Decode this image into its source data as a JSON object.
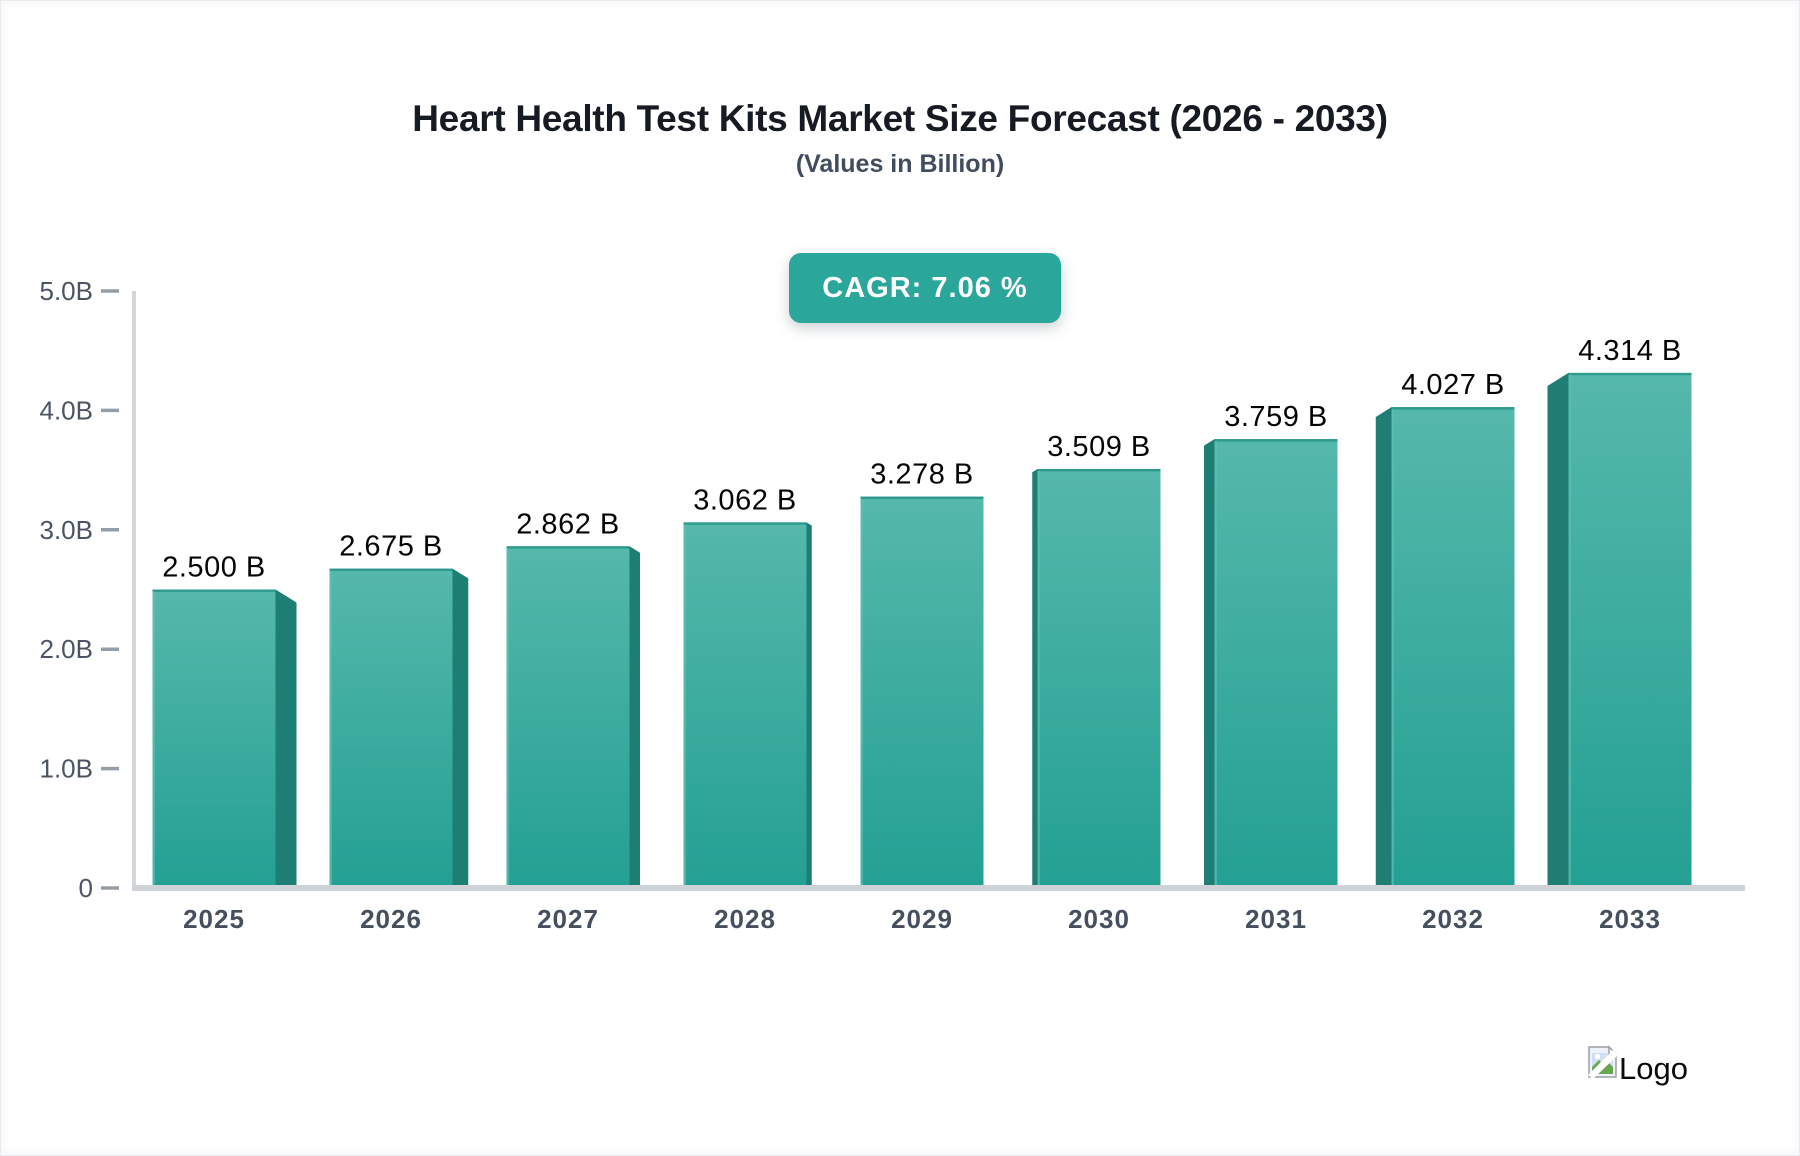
{
  "header": {
    "title": "Heart Health Test Kits Market Size Forecast (2026 - 2033)",
    "subtitle": "(Values in Billion)",
    "cagr_badge": "CAGR: 7.06 %"
  },
  "footer": {
    "logo_text": "Logo",
    "logo_icon": "broken-image-icon"
  },
  "colors": {
    "bar_face_top": "#55b8ab",
    "bar_face_bottom": "#23a093",
    "bar_side": "#1e7e73",
    "bar_top_edge": "#2d9a8c",
    "bar_left_highlight": "#5ec0b3",
    "badge_bg": "#2aa79a",
    "badge_text": "#ffffff",
    "axis_line": "#cfd3d7",
    "tick_mark": "#959da6",
    "y_label": "#4a5462",
    "x_label": "#454f5e",
    "value_label": "#050505",
    "title": "#151a23",
    "subtitle": "#414c5e"
  },
  "chart_data": {
    "type": "bar",
    "title": "Heart Health Test Kits Market Size Forecast (2026 - 2033)",
    "subtitle": "(Values in Billion)",
    "cagr_label": "CAGR: 7.06 %",
    "categories": [
      "2025",
      "2026",
      "2027",
      "2028",
      "2029",
      "2030",
      "2031",
      "2032",
      "2033"
    ],
    "values": [
      2.5,
      2.675,
      2.862,
      3.062,
      3.278,
      3.509,
      3.759,
      4.027,
      4.314
    ],
    "value_labels": [
      "2.500 B",
      "2.675 B",
      "2.862 B",
      "3.062 B",
      "3.278 B",
      "3.509 B",
      "3.759 B",
      "4.027 B",
      "4.314 B"
    ],
    "xlabel": "",
    "ylabel": "",
    "ylim": [
      0,
      5
    ],
    "y_ticks": [
      {
        "value": 0,
        "label": "0"
      },
      {
        "value": 1,
        "label": "1.0B"
      },
      {
        "value": 2,
        "label": "2.0B"
      },
      {
        "value": 3,
        "label": "3.0B"
      },
      {
        "value": 4,
        "label": "4.0B"
      },
      {
        "value": 5,
        "label": "5.0B"
      }
    ],
    "grid": false,
    "legend_position": "none",
    "style": "3d-perspective-bars"
  }
}
